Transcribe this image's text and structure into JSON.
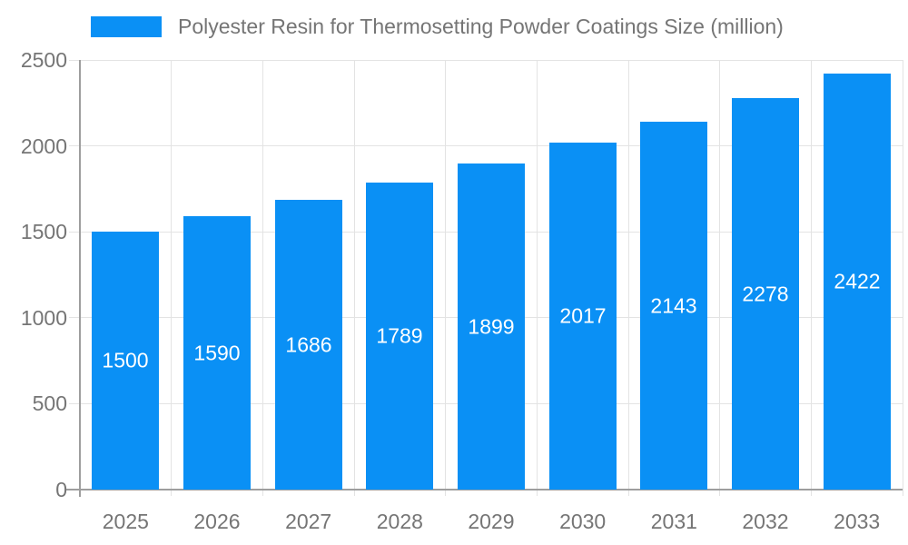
{
  "chart_data": {
    "type": "bar",
    "title": "",
    "legend": "Polyester Resin for Thermosetting Powder Coatings Size (million)",
    "legend_position": "top",
    "categories": [
      "2025",
      "2026",
      "2027",
      "2028",
      "2029",
      "2030",
      "2031",
      "2032",
      "2033"
    ],
    "values": [
      1500,
      1590,
      1686,
      1789,
      1899,
      2017,
      2143,
      2278,
      2422
    ],
    "xlabel": "",
    "ylabel": "",
    "ylim": [
      0,
      2500
    ],
    "yticks": [
      0,
      500,
      1000,
      1500,
      2000,
      2500
    ],
    "grid": true,
    "colors": {
      "bar": "#0a90f5",
      "axis_text": "#757575",
      "grid_line": "#e3e3e3",
      "axis_line": "#9e9e9e",
      "value_label": "#ffffff",
      "background": "#ffffff"
    }
  }
}
